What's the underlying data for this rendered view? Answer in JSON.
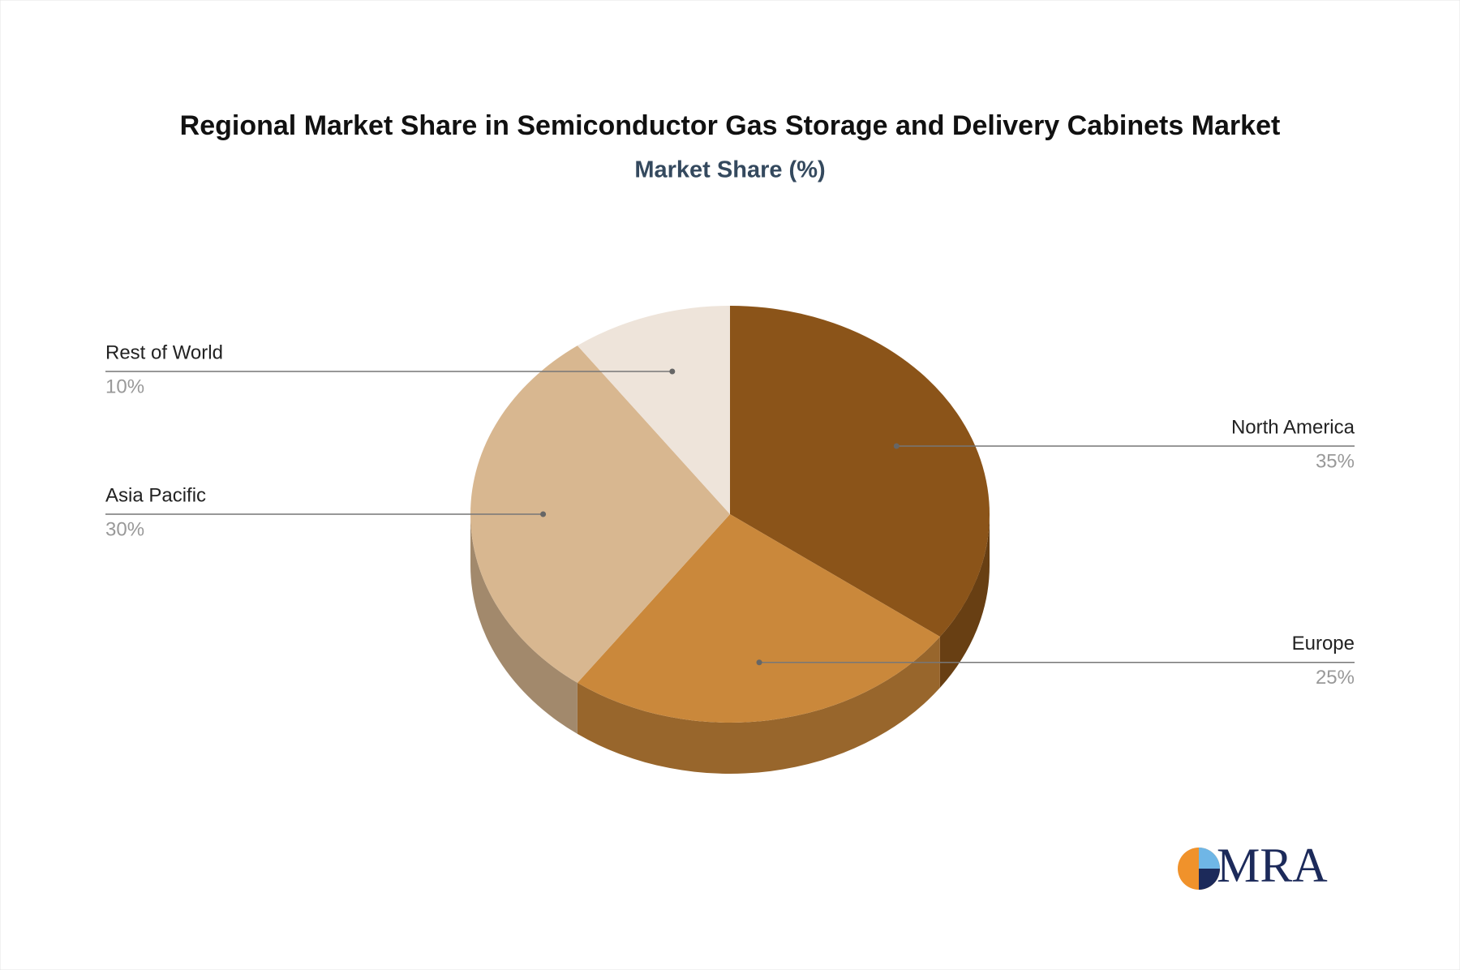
{
  "chart_data": {
    "type": "pie3d",
    "title": "Regional Market Share in Semiconductor Gas Storage and Delivery Cabinets Market",
    "subtitle": "Market Share (%)",
    "categories": [
      "North America",
      "Europe",
      "Asia Pacific",
      "Rest of World"
    ],
    "values": [
      35,
      25,
      30,
      10
    ],
    "value_labels": [
      "35%",
      "25%",
      "30%",
      "10%"
    ],
    "colors": [
      "#8b5419",
      "#ca883b",
      "#d8b790",
      "#eee4da"
    ]
  },
  "logo": {
    "text": "MRA"
  }
}
